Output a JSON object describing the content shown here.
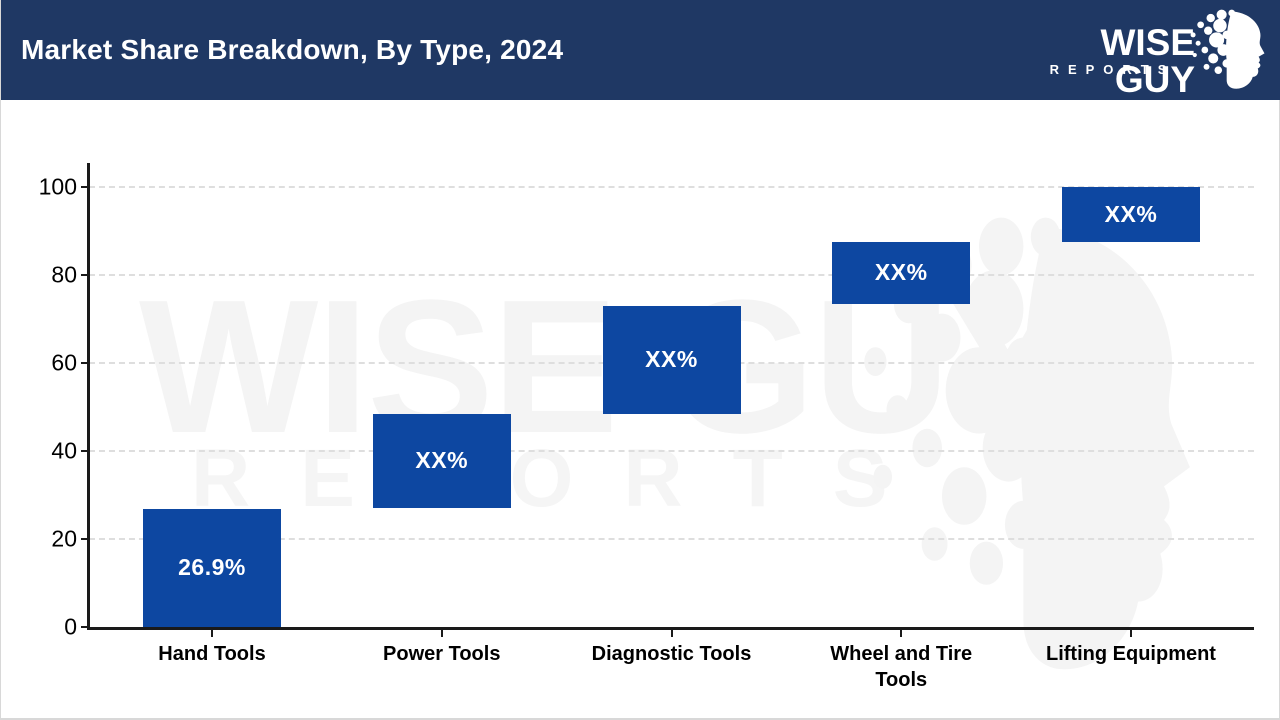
{
  "header": {
    "title": "Market Share Breakdown, By Type, 2024",
    "background_color": "#1f3864",
    "logo": {
      "line1": "WISE GUY",
      "line2": "REPORTS",
      "icon": "dotted-head-profile"
    }
  },
  "watermark": {
    "line1": "WISE GUY",
    "line2": "REPORTS",
    "icon": "dotted-head-profile"
  },
  "chart_data": {
    "type": "bar",
    "subtype": "waterfall-floating-bars",
    "title": "Market Share Breakdown, By Type, 2024",
    "xlabel": "",
    "ylabel": "",
    "categories": [
      "Hand Tools",
      "Power Tools",
      "Diagnostic Tools",
      "Wheel and Tire Tools",
      "Lifting Equipment"
    ],
    "segments": [
      {
        "category": "Hand Tools",
        "start": 0,
        "end": 26.9,
        "label": "26.9%"
      },
      {
        "category": "Power Tools",
        "start": 27,
        "end": 48.5,
        "label": "XX%"
      },
      {
        "category": "Diagnostic Tools",
        "start": 48.5,
        "end": 73,
        "label": "XX%"
      },
      {
        "category": "Wheel and Tire Tools",
        "start": 73.5,
        "end": 87.5,
        "label": "XX%"
      },
      {
        "category": "Lifting Equipment",
        "start": 87.5,
        "end": 100,
        "label": "XX%"
      }
    ],
    "yticks": [
      0,
      20,
      40,
      60,
      80,
      100
    ],
    "ylim": [
      0,
      105
    ],
    "grid": "horizontal-dashed",
    "legend": "none",
    "bar_color": "#0d47a1",
    "bar_label_color": "#ffffff",
    "axis_color": "#1a1a1a",
    "gridline_color": "#dedede"
  }
}
